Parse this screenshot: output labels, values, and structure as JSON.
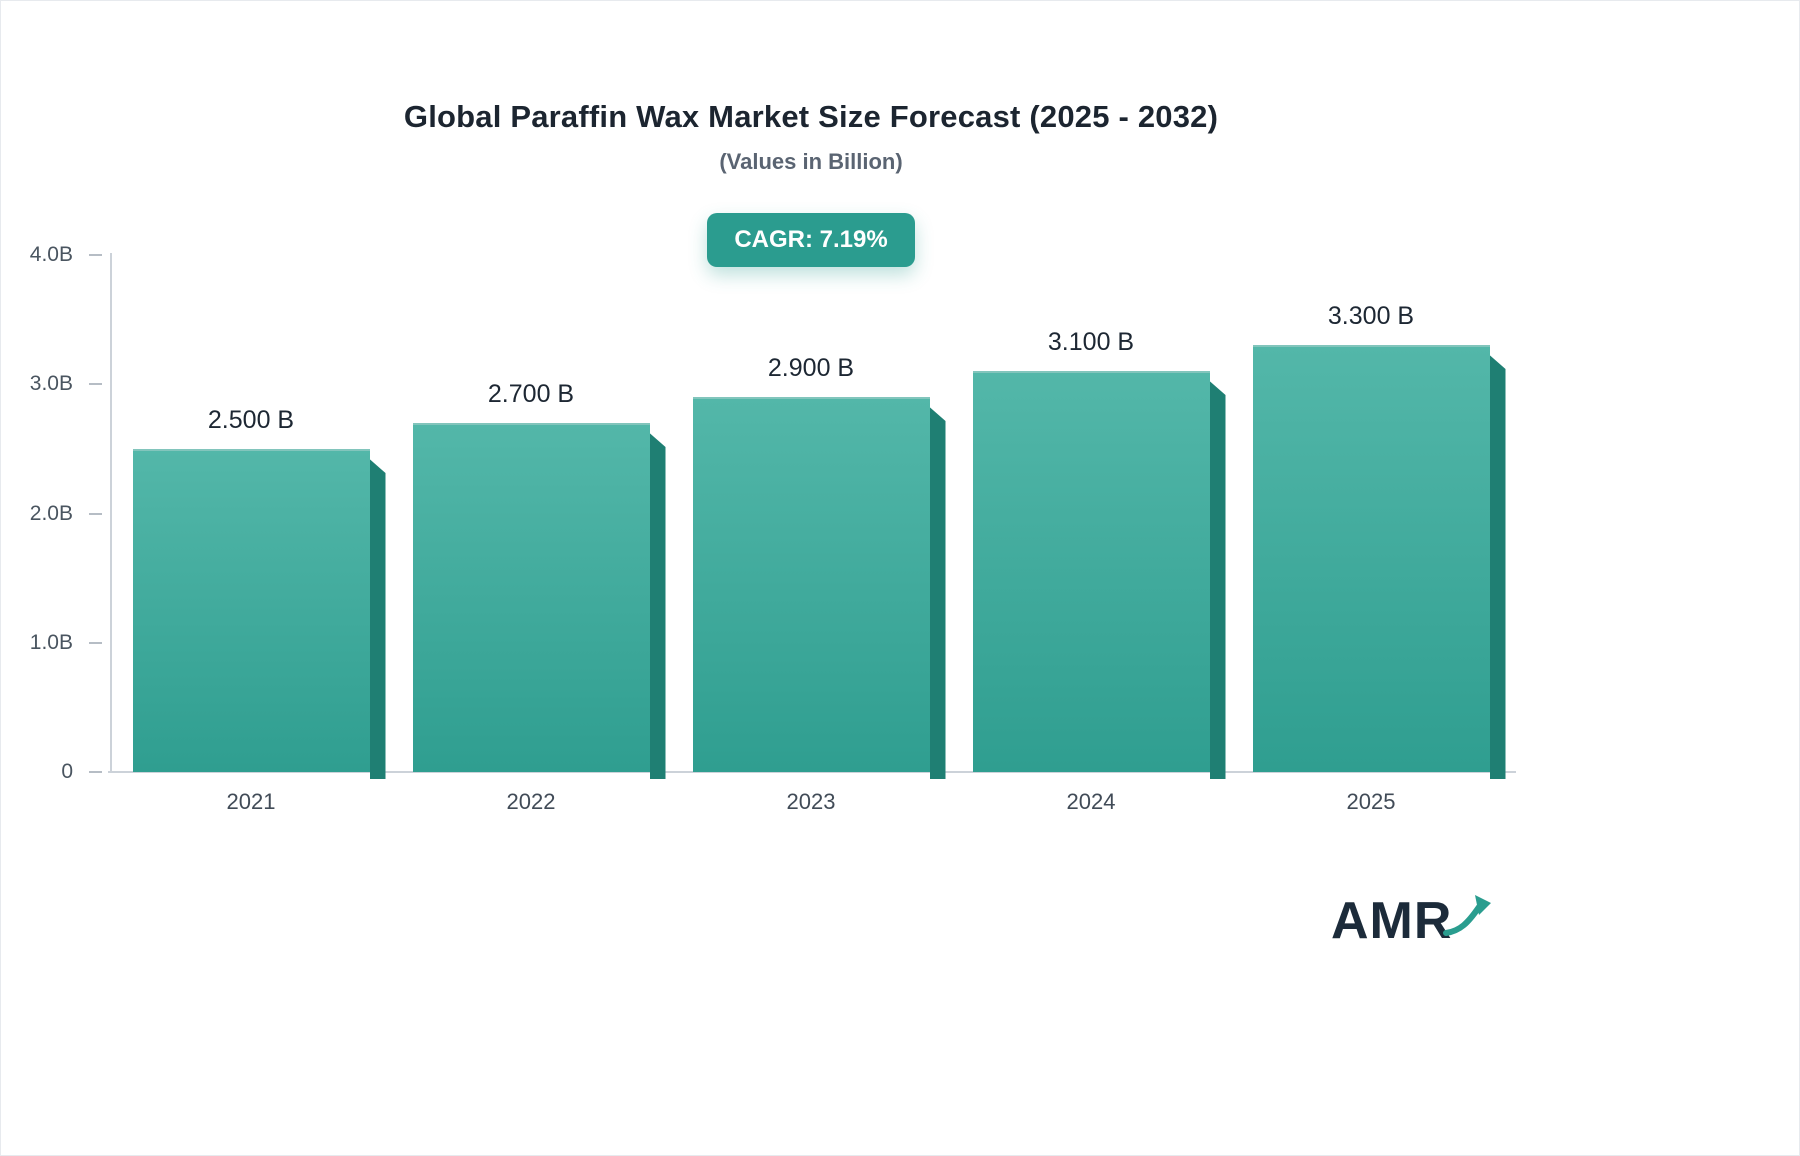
{
  "accent_color": "#2b9c8f",
  "logo_text": "AMR",
  "chart_data": {
    "type": "bar",
    "title": "Global Paraffin Wax Market Size Forecast (2025 - 2032)",
    "subtitle": "(Values in Billion)",
    "annotation": "CAGR: 7.19%",
    "categories": [
      "2021",
      "2022",
      "2023",
      "2024",
      "2025"
    ],
    "values": [
      2.5,
      2.7,
      2.9,
      3.1,
      3.3
    ],
    "value_labels": [
      "2.500 B",
      "2.700 B",
      "2.900 B",
      "3.100 B",
      "3.300 B"
    ],
    "yticks": [
      {
        "label": "4.0B",
        "value": 4.0
      },
      {
        "label": "3.0B",
        "value": 3.0
      },
      {
        "label": "2.0B",
        "value": 2.0
      },
      {
        "label": "1.0B",
        "value": 1.0
      },
      {
        "label": "0",
        "value": 0.0
      }
    ],
    "ylim": [
      0,
      4
    ],
    "xlabel": "",
    "ylabel": "",
    "grid": false,
    "legend": "none",
    "bar_color_top": "#53b7a9",
    "bar_color_bottom": "#2f9e90",
    "bar_side_color": "#1f7f73"
  }
}
